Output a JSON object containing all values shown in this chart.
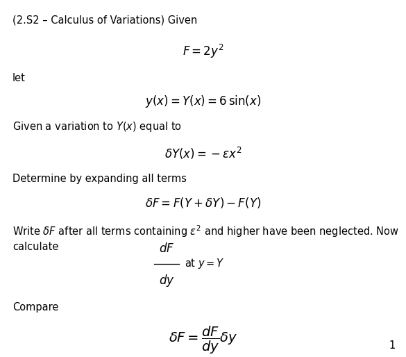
{
  "bg_color": "#ffffff",
  "text_color": "#000000",
  "page_number": "1",
  "title": "(2.S2 – Calculus of Variations) Given",
  "eq1": "$F = 2y^2$",
  "text1": "let",
  "eq2": "$y(x) = Y(x) = 6\\,\\sin(x)$",
  "text2": "Given a variation to $Y(x)$ equal to",
  "eq3": "$\\delta Y(x) = -\\epsilon x^2$",
  "text3": "Determine by expanding all terms",
  "eq4": "$\\delta F = F(Y + \\delta Y) - F(Y)$",
  "text4a": "Write $\\delta F$ after all terms containing $\\epsilon^2$ and higher have been neglected. Now",
  "text4b": "calculate",
  "eq5_text": "at $y = Y$",
  "text5": "Compare",
  "eq6": "$\\delta F = \\dfrac{dF}{dy}\\delta y$",
  "figsize": [
    5.85,
    5.14
  ],
  "dpi": 100
}
